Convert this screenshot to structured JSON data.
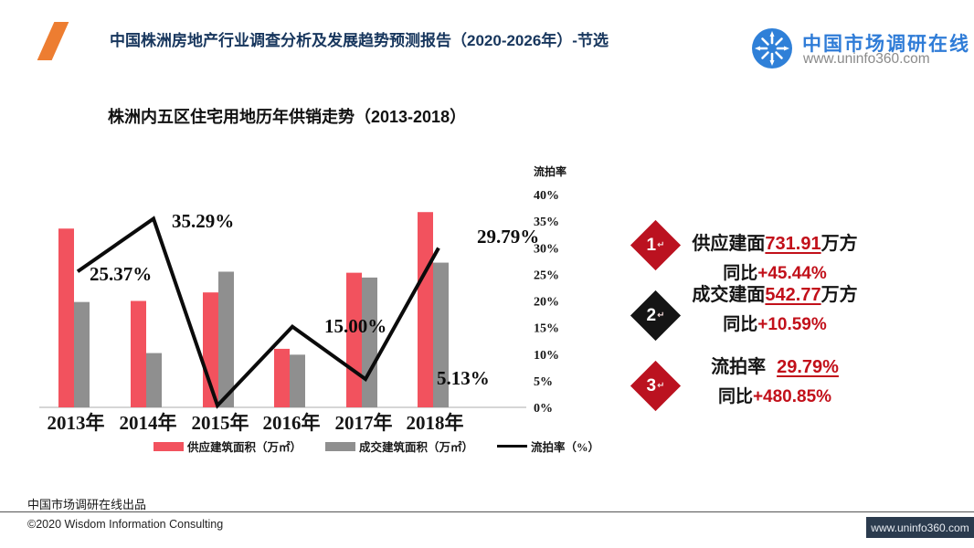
{
  "header": {
    "report_title": "中国株洲房地产行业调查分析及发展趋势预测报告（2020-2026年）-节选",
    "brand": {
      "name": "中国市场调研在线",
      "url": "www.uninfo360.com"
    }
  },
  "slide": {
    "title": "株洲内五区住宅用地历年供销走势（2013-2018）"
  },
  "chart_data": {
    "type": "bar",
    "categories": [
      "2013年",
      "2014年",
      "2015年",
      "2016年",
      "2017年",
      "2018年"
    ],
    "series": [
      {
        "name": "供应建筑面积（万㎡）",
        "kind": "bar",
        "color": "#F2525E",
        "values": [
          33.6,
          20.0,
          21.6,
          11.0,
          25.3,
          36.7
        ]
      },
      {
        "name": "成交建筑面积（万㎡）",
        "kind": "bar",
        "color": "#8F8F8F",
        "values": [
          19.8,
          10.2,
          25.5,
          9.9,
          24.4,
          27.2
        ]
      },
      {
        "name": "流拍率（%）",
        "kind": "line",
        "color": "#0B0B0B",
        "values": [
          25.37,
          35.29,
          0.0,
          15.0,
          5.13,
          29.79
        ],
        "point_labels": [
          "25.37%",
          "35.29%",
          "",
          "15.00%",
          "5.13%",
          "29.79%"
        ]
      }
    ],
    "y_axis": {
      "title": "流拍率",
      "min": 0,
      "max": 40,
      "ticks": [
        "40%",
        "35%",
        "30%",
        "25%",
        "20%",
        "15%",
        "10%",
        "5%",
        "0%"
      ]
    },
    "legend_position": "bottom",
    "note": "bar heights estimated against the right-hand 0-40% axis; hidden bar axis implied (2018 supply 731.91万方, deal 542.77万方 per side panel)"
  },
  "stats": [
    {
      "badge": "1",
      "badge_arrow": "↵",
      "diamond_color": "#BB1220",
      "line1_prefix": "供应建面",
      "line1_value": "731.91",
      "line1_suffix": "万方",
      "line2_prefix": "同比",
      "line2_value": "+45.44%"
    },
    {
      "badge": "2",
      "badge_arrow": "↵",
      "diamond_color": "#151515",
      "line1_prefix": "成交建面",
      "line1_value": "542.77",
      "line1_suffix": "万方",
      "line2_prefix": "同比",
      "line2_value": "+10.59%"
    },
    {
      "badge": "3",
      "badge_arrow": "↵",
      "diamond_color": "#BB1220",
      "line1_prefix": "流拍率",
      "line1_value": "29.79%",
      "line1_suffix": "",
      "line2_prefix": "同比",
      "line2_value": "+480.85%"
    }
  ],
  "footer": {
    "produced_by": "中国市场调研在线出品",
    "copyright": "©2020 Wisdom Information Consulting",
    "badge_url": "www.uninfo360.com"
  },
  "colors": {
    "accent_orange": "#ED7D31",
    "title_navy": "#17365D",
    "brand_blue": "#2F7CD7",
    "stat_red": "#C2101A",
    "badge_navy": "#2B3B4E"
  }
}
